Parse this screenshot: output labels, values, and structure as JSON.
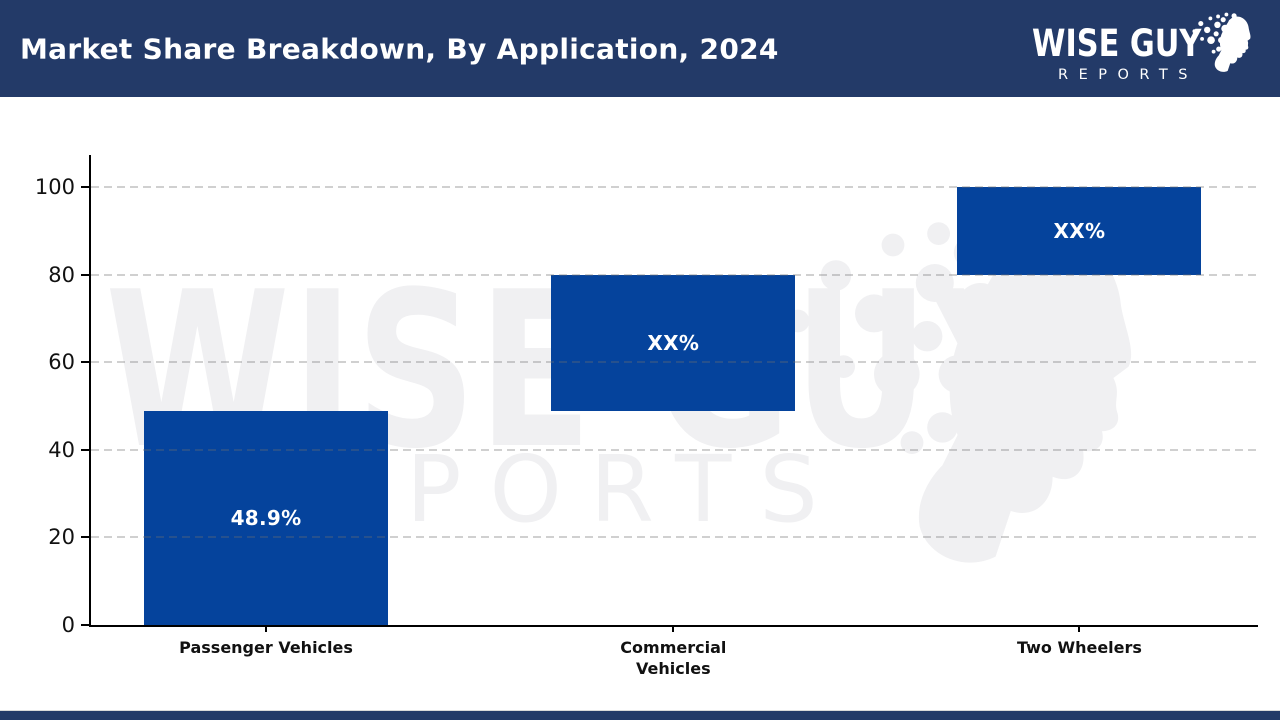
{
  "header": {
    "title": "Market Share Breakdown, By Application, 2024",
    "logo": {
      "line1": "WISE GUY",
      "line2": "REPORTS"
    }
  },
  "watermark": {
    "line1": "WISE GUY",
    "line2": "REPORTS"
  },
  "chart_data": {
    "type": "bar",
    "variant": "floating-waterfall",
    "title": "Market Share Breakdown, By Application, 2024",
    "categories": [
      "Passenger Vehicles",
      "Commercial\nVehicles",
      "Two Wheelers"
    ],
    "series": [
      {
        "name": "Market Share (%)",
        "segments": [
          {
            "category": "Passenger Vehicles",
            "start": 0,
            "end": 48.9,
            "label": "48.9%"
          },
          {
            "category": "Commercial Vehicles",
            "start": 48.9,
            "end": 80,
            "label": "XX%"
          },
          {
            "category": "Two Wheelers",
            "start": 80,
            "end": 100,
            "label": "XX%"
          }
        ]
      }
    ],
    "xlabel": "",
    "ylabel": "",
    "yticks": [
      0,
      20,
      40,
      60,
      80,
      100
    ],
    "ylim": [
      0,
      107.3
    ],
    "grid": "horizontal-dashed",
    "legend": "none",
    "layout": {
      "bar_center_fracs": [
        0.15,
        0.499,
        0.847
      ],
      "bar_width_frac": 0.209
    }
  },
  "colors": {
    "header_bg": "#233A68",
    "bar": "#05439C",
    "bar_label": "#FFFFFF",
    "watermark": "#F0F0F2",
    "gridline": "#D1D1D1",
    "axis": "#000000"
  }
}
